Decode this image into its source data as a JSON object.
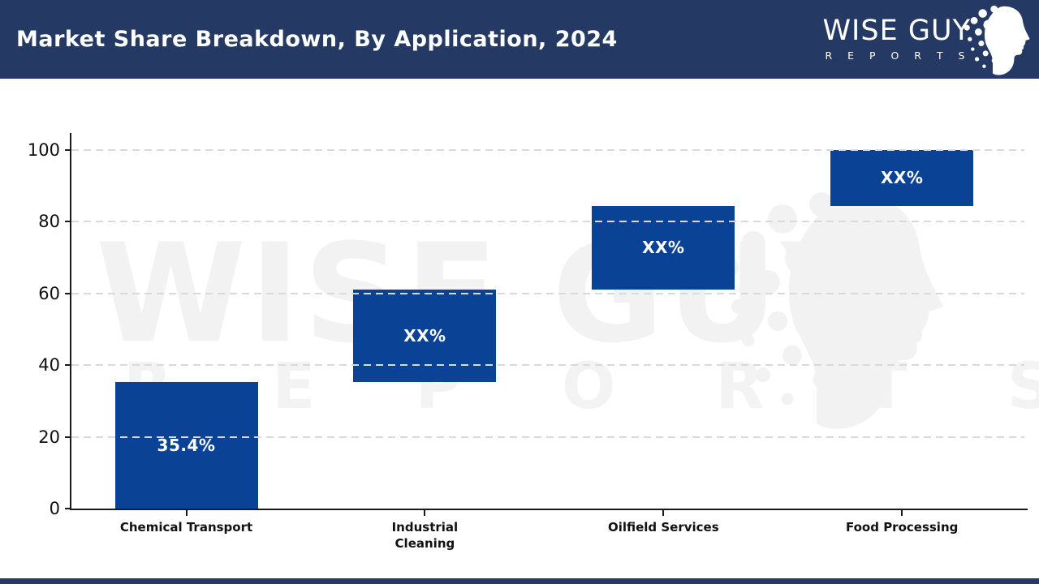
{
  "header": {
    "title": "Market Share Breakdown, By Application, 2024",
    "brand": {
      "line1": "WISE GUY",
      "line2": "R E P O R T S"
    }
  },
  "watermark": {
    "line1": "WISE GUY",
    "line2": "R E P O R T S"
  },
  "chart_data": {
    "type": "bar",
    "subtype": "floating-waterfall",
    "title": "Market Share Breakdown, By Application, 2024",
    "categories": [
      "Chemical Transport",
      "Industrial Cleaning",
      "Oilfield Services",
      "Food Processing"
    ],
    "categories_display": [
      "Chemical Transport",
      "Industrial\nCleaning",
      "Oilfield Services",
      "Food Processing"
    ],
    "segments": [
      {
        "category": "Chemical Transport",
        "start": 0,
        "end": 35.4,
        "label": "35.4%"
      },
      {
        "category": "Industrial Cleaning",
        "start": 35.4,
        "end": 61,
        "label": "XX%"
      },
      {
        "category": "Oilfield Services",
        "start": 61,
        "end": 84.5,
        "label": "XX%"
      },
      {
        "category": "Food Processing",
        "start": 84.5,
        "end": 100,
        "label": "XX%"
      }
    ],
    "ylim": [
      0,
      100
    ],
    "yticks": [
      0,
      20,
      40,
      60,
      80,
      100
    ],
    "xlabel": "",
    "ylabel": "",
    "legend": "none",
    "grid": "horizontal-dashed",
    "colors": {
      "bar": "#0a4295",
      "bar_label": "#ffffff",
      "grid": "#d9d9d9",
      "axis": "#1a1a1a",
      "header_bg": "#243a64",
      "watermark": "#f2f2f2"
    }
  }
}
